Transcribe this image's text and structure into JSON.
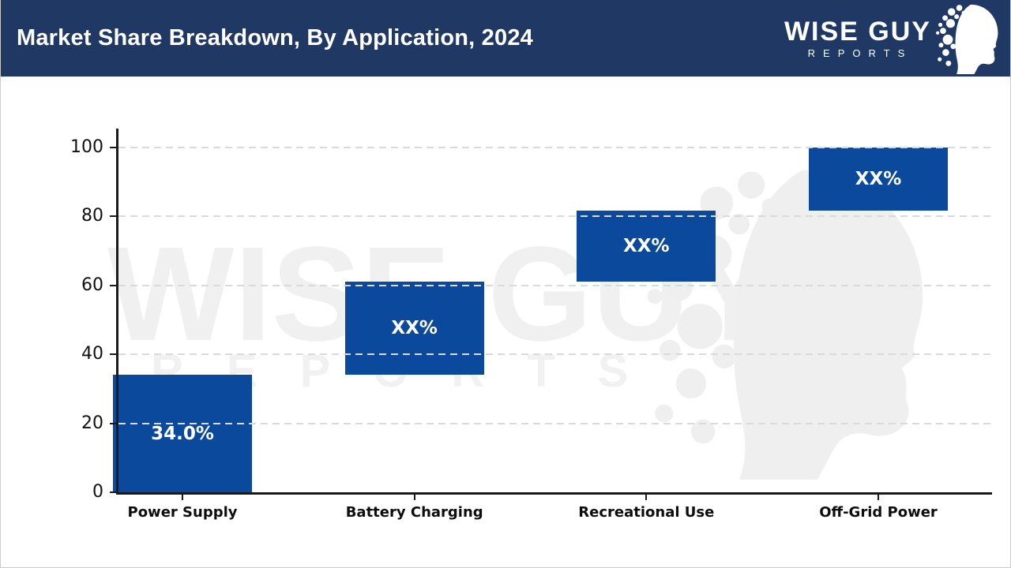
{
  "header": {
    "title": "Market Share Breakdown, By Application, 2024",
    "logo": {
      "line1": "WISE GUY",
      "line2": "REPORTS"
    }
  },
  "watermark": {
    "line1": "WISE GUY",
    "line2": "REPORTS"
  },
  "chart_data": {
    "type": "bar",
    "subtype": "floating-waterfall",
    "title": "Market Share Breakdown, By Application, 2024",
    "categories": [
      "Power Supply",
      "Battery Charging",
      "Recreational Use",
      "Off-Grid Power"
    ],
    "segments": [
      {
        "category": "Power Supply",
        "start": 0,
        "end": 34.0,
        "label": "34.0%"
      },
      {
        "category": "Battery Charging",
        "start": 34.0,
        "end": 61.2,
        "label": "XX%"
      },
      {
        "category": "Recreational Use",
        "start": 61.2,
        "end": 81.8,
        "label": "XX%"
      },
      {
        "category": "Off-Grid Power",
        "start": 81.8,
        "end": 100.0,
        "label": "XX%"
      }
    ],
    "bar_labels": [
      "34.0%",
      "XX%",
      "XX%",
      "XX%"
    ],
    "yticks": [
      0,
      20,
      40,
      60,
      80,
      100
    ],
    "ylim": [
      0,
      105
    ],
    "xlabel": "",
    "ylabel": "",
    "grid": "dashed-horizontal-over-bars",
    "legend": "none"
  },
  "colors": {
    "header_bg": "#1F3864",
    "bar_fill": "#0B499C",
    "bar_label": "#FFFFFF",
    "axis": "#1A1A1A",
    "gridline": "#DADADA",
    "watermark": "#F0F0F0"
  }
}
